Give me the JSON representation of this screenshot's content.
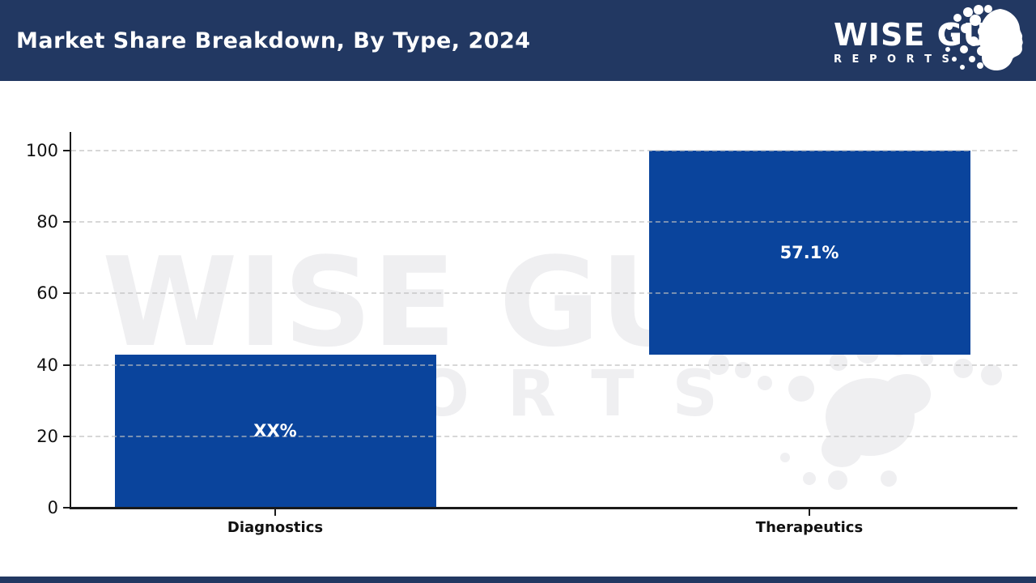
{
  "header": {
    "title": "Market Share Breakdown, By Type, 2024",
    "logo": {
      "name": "WISE GUY REPORTS",
      "line1": "WISE GUY",
      "line2": "R E P O R T S"
    }
  },
  "chart_data": {
    "type": "bar",
    "style": "waterfall",
    "title": "Market Share Breakdown, By Type, 2024",
    "categories": [
      "Diagnostics",
      "Therapeutics"
    ],
    "bars": [
      {
        "category": "Diagnostics",
        "label": "XX%",
        "start": 0,
        "end": 42.9
      },
      {
        "category": "Therapeutics",
        "label": "57.1%",
        "start": 42.9,
        "end": 100
      }
    ],
    "xlabel": "",
    "ylabel": "",
    "yticks": [
      0,
      20,
      40,
      60,
      80,
      100
    ],
    "ylim": [
      0,
      104.8
    ],
    "grid": {
      "axis": "y",
      "line_style": "dashed",
      "drawn_over_bars": true
    },
    "legend": "none"
  },
  "watermark": {
    "line1": "WISE GUY",
    "line2": "REPORTS"
  },
  "colors": {
    "header_bg": "#223862",
    "footer_bg": "#223862",
    "bar": "#0A449C",
    "title_text": "#FFFFFF",
    "bar_label_text": "#FFFFFF",
    "axis": "#1A1A1A",
    "tick_label": "#111111",
    "gridline": "rgba(190,190,190,0.62)",
    "watermark": "#EFEFF1",
    "background": "#FFFFFF"
  }
}
